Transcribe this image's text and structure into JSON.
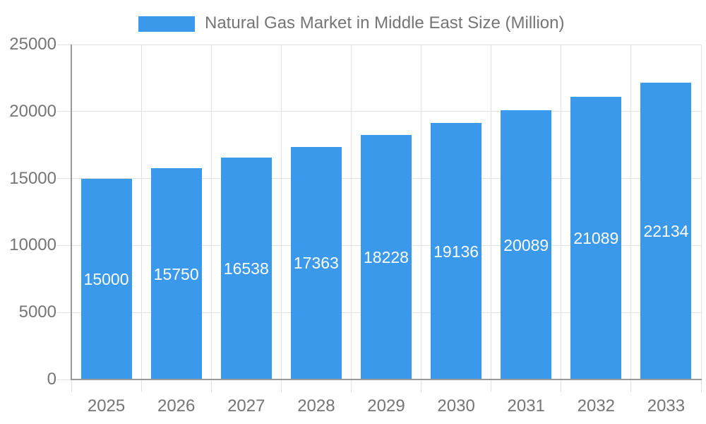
{
  "chart_data": {
    "type": "bar",
    "title": "",
    "legend": "Natural Gas Market in Middle East Size (Million)",
    "categories": [
      "2025",
      "2026",
      "2027",
      "2028",
      "2029",
      "2030",
      "2031",
      "2032",
      "2033"
    ],
    "series": [
      {
        "name": "Natural Gas Market in Middle East Size (Million)",
        "values": [
          15000,
          15750,
          16538,
          17363,
          18228,
          19136,
          20089,
          21089,
          22134
        ]
      }
    ],
    "data_labels": [
      "15000",
      "15750",
      "16538",
      "17363",
      "18228",
      "19136",
      "20089",
      "21089",
      "22134"
    ],
    "xlabel": "",
    "ylabel": "",
    "ylim": [
      0,
      25000
    ],
    "yticks": [
      0,
      5000,
      10000,
      15000,
      20000,
      25000
    ],
    "ytick_labels": [
      "0",
      "5000",
      "10000",
      "15000",
      "20000",
      "25000"
    ],
    "grid": true,
    "legend_position": "top"
  },
  "colors": {
    "bar": "#3b99ec",
    "bar_label": "#ffffff",
    "axis_line": "#999999",
    "grid_line": "#e0e0e0",
    "tick_line": "#e0e0e0",
    "axis_text": "#757575",
    "background": "#ffffff"
  }
}
